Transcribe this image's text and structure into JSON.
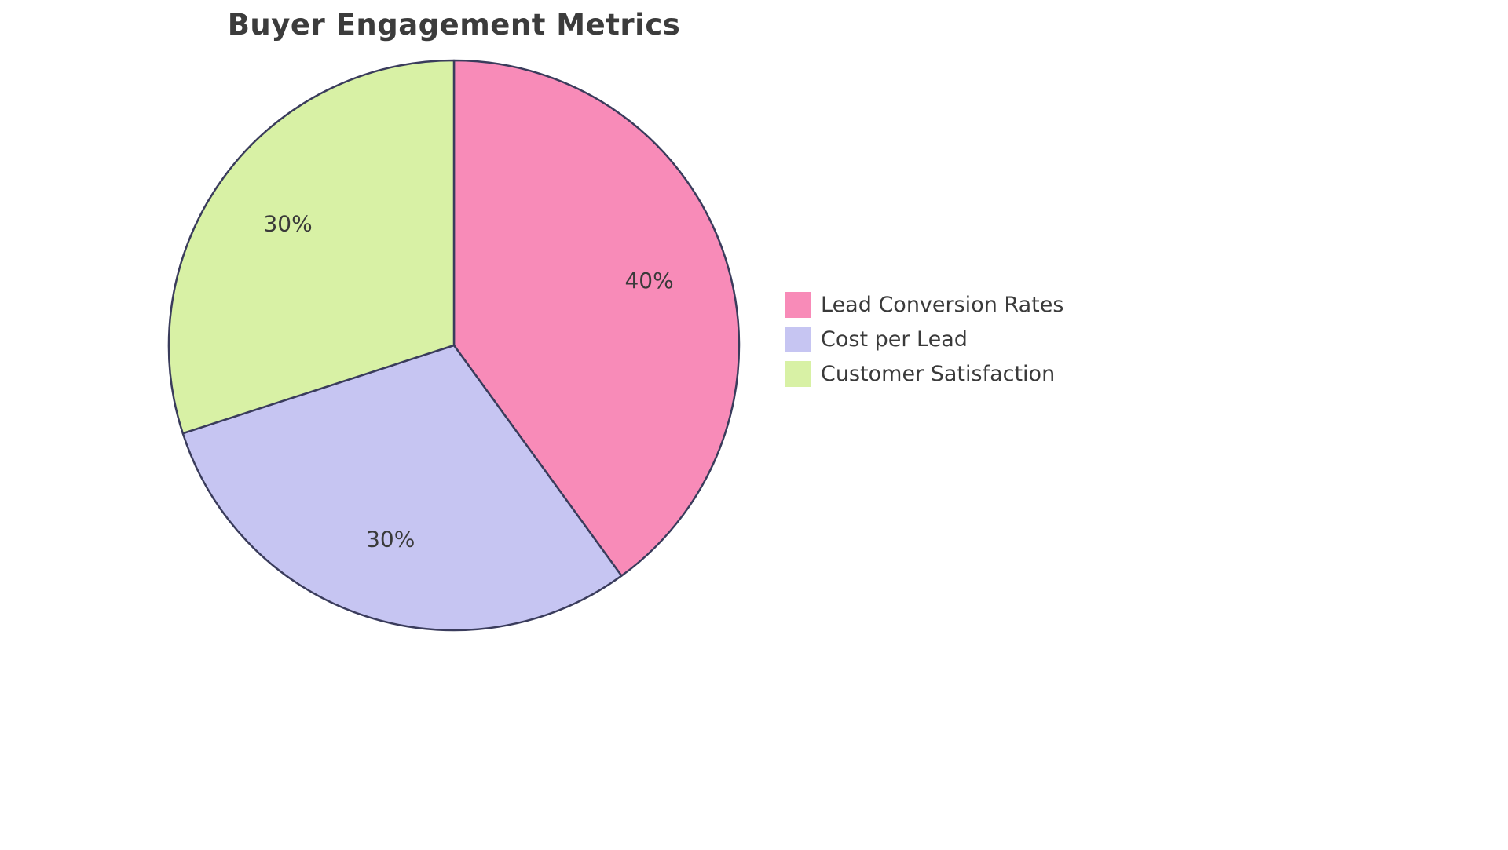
{
  "title": "Buyer Engagement Metrics",
  "chart_data": {
    "type": "pie",
    "title": "Buyer Engagement Metrics",
    "labels": [
      "Lead Conversion Rates",
      "Cost per Lead",
      "Customer Satisfaction"
    ],
    "values": [
      40,
      30,
      30
    ],
    "unit": "%",
    "slice_labels": [
      "40%",
      "30%",
      "30%"
    ],
    "colors": [
      "#F88BB8",
      "#C6C5F2",
      "#D8F1A5"
    ],
    "stroke_color": "#3A3C5C",
    "label_color": "#3A3A3A",
    "start_angle_deg": -90,
    "direction": "clockwise",
    "legend_position": "right",
    "grid": false
  }
}
